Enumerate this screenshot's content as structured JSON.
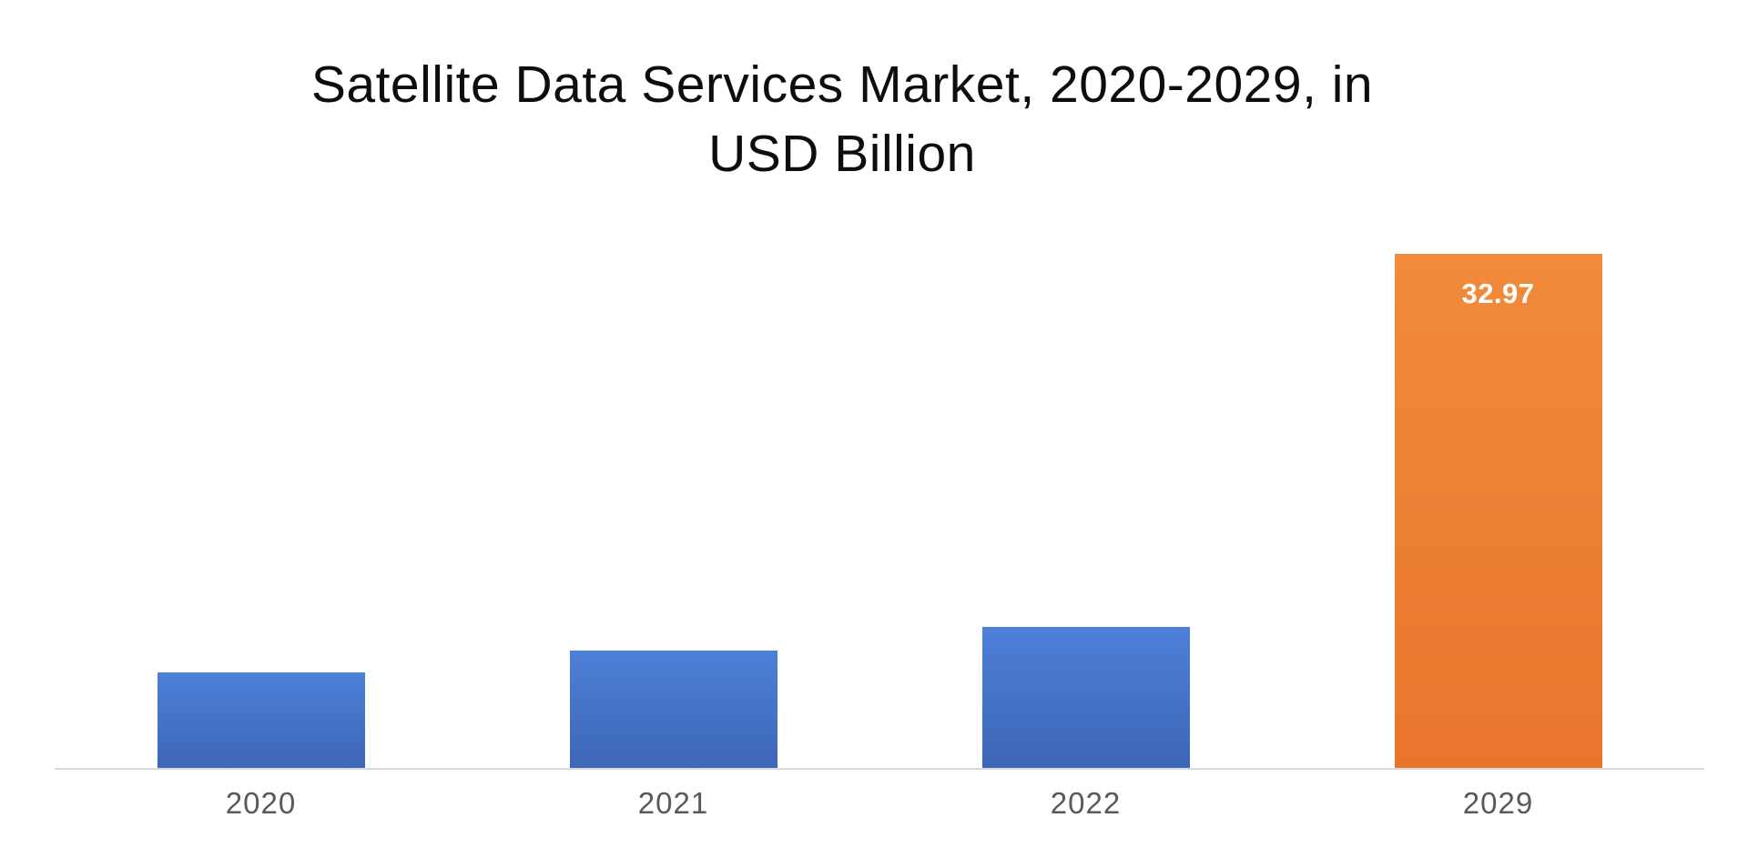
{
  "chart_data": {
    "type": "bar",
    "title": "Satellite Data Services Market, 2020-2029, in USD Billion",
    "title_lines": [
      "Satellite Data Services Market, 2020-2029, in",
      "USD Billion"
    ],
    "categories": [
      "2020",
      "2021",
      "2022",
      "2029"
    ],
    "values": [
      6.2,
      7.6,
      9.1,
      32.97
    ],
    "value_labels": [
      "",
      "",
      "",
      "32.97"
    ],
    "xlabel": "",
    "ylabel": "",
    "ylim": [
      0,
      32.97
    ],
    "grid": false,
    "legend": false,
    "bar_colors": [
      "#4472C4",
      "#4472C4",
      "#4472C4",
      "#ED7D31"
    ],
    "bar_gradients": [
      [
        "#4d80d8",
        "#3d66b6"
      ],
      [
        "#4d80d8",
        "#3d66b6"
      ],
      [
        "#4d80d8",
        "#3d66b6"
      ],
      [
        "#f18b3b",
        "#e9752c"
      ]
    ],
    "axis_line_color": "#d9d9d9",
    "tick_label_color": "#595959",
    "data_label_color": "#ffffff",
    "background_color": "#ffffff"
  }
}
